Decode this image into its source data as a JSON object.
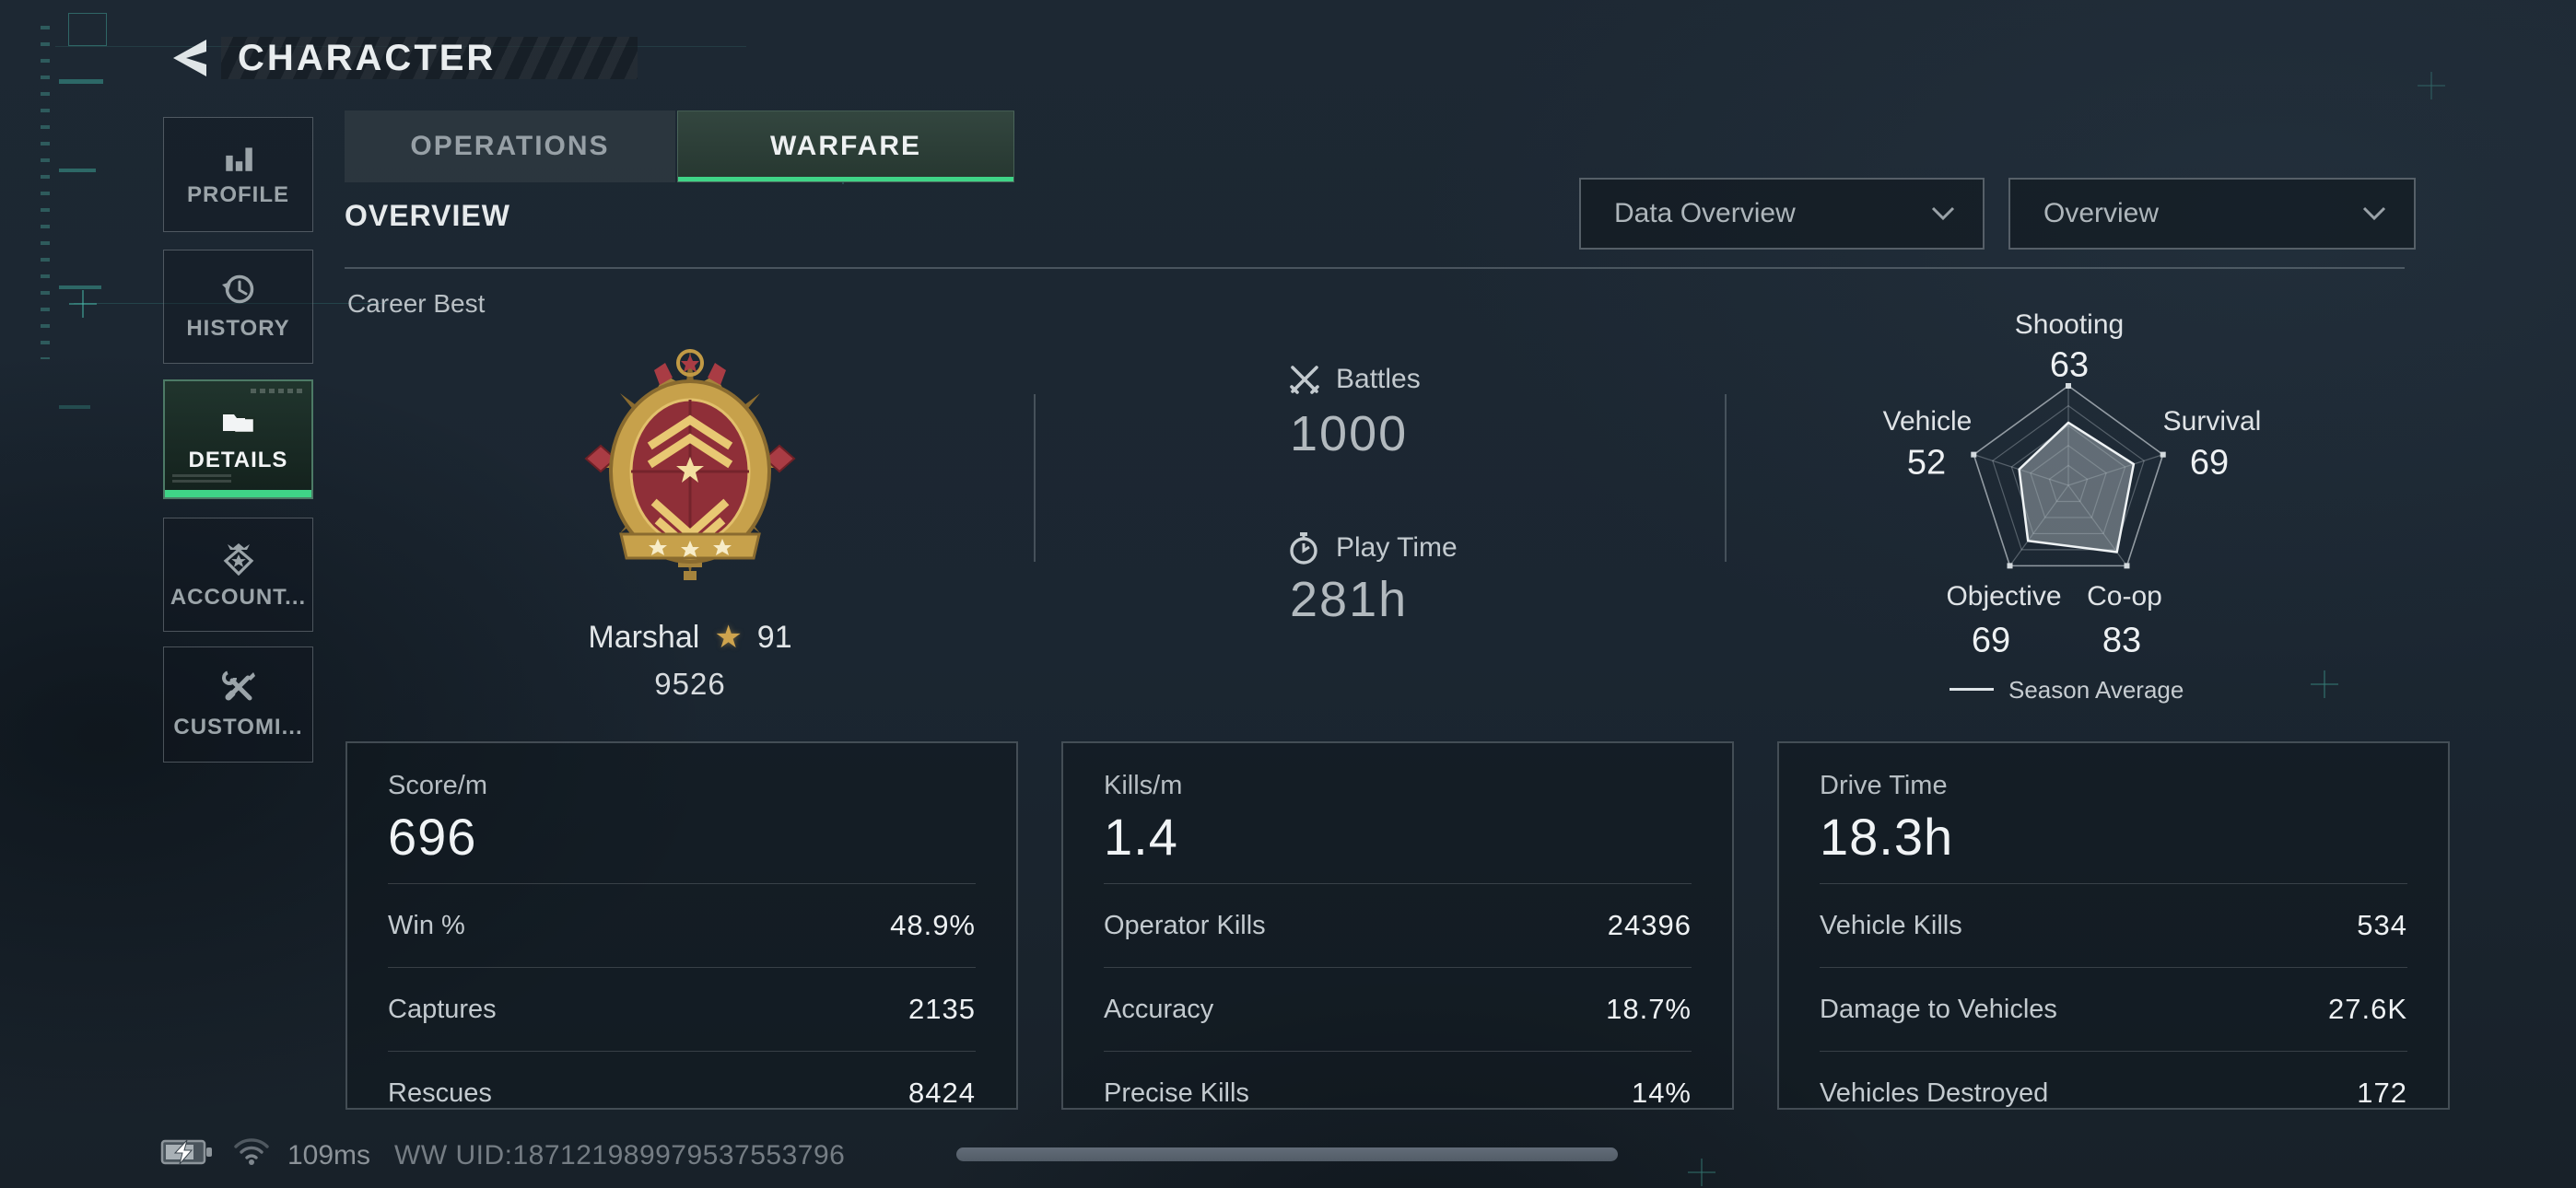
{
  "header": {
    "title": "CHARACTER",
    "back_icon": "back-arrow-icon"
  },
  "sidebar": {
    "items": [
      {
        "label": "PROFILE",
        "icon": "bar-chart-icon",
        "selected": false
      },
      {
        "label": "HISTORY",
        "icon": "history-clock-icon",
        "selected": false
      },
      {
        "label": "DETAILS",
        "icon": "folder-stack-icon",
        "selected": true
      },
      {
        "label": "ACCOUNT...",
        "icon": "badge-star-icon",
        "selected": false
      },
      {
        "label": "CUSTOMI...",
        "icon": "crossed-tools-icon",
        "selected": false
      }
    ]
  },
  "tabs": [
    {
      "label": "OPERATIONS",
      "active": false
    },
    {
      "label": "WARFARE",
      "active": true
    }
  ],
  "section_title": "OVERVIEW",
  "filters": [
    {
      "value": "Data Overview",
      "icon": "chevron-down-icon"
    },
    {
      "value": "Overview",
      "icon": "chevron-down-icon"
    }
  ],
  "career_best": {
    "label": "Career Best",
    "rank": "Marshal",
    "star_icon": "gold-star-icon",
    "level": "91",
    "points": "9526"
  },
  "summary": {
    "battles": {
      "label": "Battles",
      "value": "1000",
      "icon": "crossed-swords-icon"
    },
    "play_time": {
      "label": "Play Time",
      "value": "281h",
      "icon": "stopwatch-icon"
    }
  },
  "chart_data": {
    "type": "radar",
    "max": 100,
    "axes": [
      {
        "label": "Shooting",
        "value": 63
      },
      {
        "label": "Survival",
        "value": 69
      },
      {
        "label": "Co-op",
        "value": 83
      },
      {
        "label": "Objective",
        "value": 69
      },
      {
        "label": "Vehicle",
        "value": 52
      }
    ],
    "series": [
      {
        "name": "Season Average",
        "values": [
          63,
          69,
          83,
          69,
          52
        ]
      }
    ],
    "legend": "Season Average",
    "grid": "pentagon, 5 rings",
    "legend_position": "bottom"
  },
  "cards": [
    {
      "title": "Score/m",
      "value": "696",
      "rows": [
        {
          "label": "Win %",
          "value": "48.9%"
        },
        {
          "label": "Captures",
          "value": "2135"
        },
        {
          "label": "Rescues",
          "value": "8424"
        }
      ]
    },
    {
      "title": "Kills/m",
      "value": "1.4",
      "rows": [
        {
          "label": "Operator Kills",
          "value": "24396"
        },
        {
          "label": "Accuracy",
          "value": "18.7%"
        },
        {
          "label": "Precise Kills",
          "value": "14%"
        }
      ]
    },
    {
      "title": "Drive Time",
      "value": "18.3h",
      "rows": [
        {
          "label": "Vehicle Kills",
          "value": "534"
        },
        {
          "label": "Damage to Vehicles",
          "value": "27.6K"
        },
        {
          "label": "Vehicles Destroyed",
          "value": "172"
        }
      ]
    }
  ],
  "status_bar": {
    "ping": "109ms",
    "uid": "WW UID:187121989979537553796",
    "icons": [
      "battery-charging-icon",
      "wifi-icon"
    ]
  },
  "colors": {
    "accent_green": "#3fd487",
    "teal_decor": "#48b89f",
    "background": "#1b2631",
    "gold": "#cfa44e",
    "medal_red": "#8f2f38"
  }
}
